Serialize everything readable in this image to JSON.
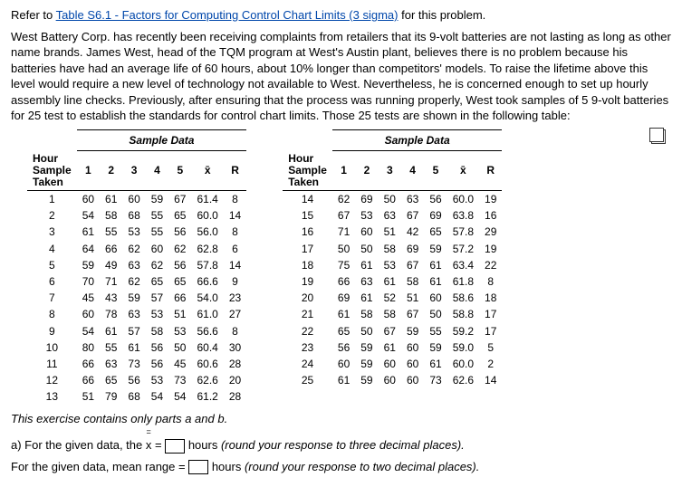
{
  "intro": {
    "refer_prefix": "Refer to ",
    "link_text": "Table S6.1 - Factors for Computing Control Chart Limits (3 sigma)",
    "refer_suffix": " for this problem.",
    "paragraph": "West Battery Corp. has recently been receiving complaints from retailers that its 9-volt batteries are not lasting as long as other name brands. James West, head of the TQM program at West's Austin plant, believes there is no problem because his batteries have had an average life of 60 hours, about 10% longer than competitors' models. To raise the lifetime above this level would require a new level of technology not available to West. Nevertheless, he is concerned enough to set up hourly assembly line checks. Previously, after ensuring that the process was running properly, West took samples of 5 9-volt batteries for 25 test to establish the standards for control chart limits. Those 25 tests are shown in the following table:"
  },
  "table": {
    "group_header": "Sample Data",
    "hour_label_l1": "Hour",
    "hour_label_l2": "Sample",
    "hour_label_l3": "Taken",
    "cols": {
      "c1": "1",
      "c2": "2",
      "c3": "3",
      "c4": "4",
      "c5": "5",
      "xbar": "x̄",
      "r": "R"
    },
    "left_rows": [
      {
        "h": "1",
        "v": [
          "60",
          "61",
          "60",
          "59",
          "67",
          "61.4",
          "8"
        ]
      },
      {
        "h": "2",
        "v": [
          "54",
          "58",
          "68",
          "55",
          "65",
          "60.0",
          "14"
        ]
      },
      {
        "h": "3",
        "v": [
          "61",
          "55",
          "53",
          "55",
          "56",
          "56.0",
          "8"
        ]
      },
      {
        "h": "4",
        "v": [
          "64",
          "66",
          "62",
          "60",
          "62",
          "62.8",
          "6"
        ]
      },
      {
        "h": "5",
        "v": [
          "59",
          "49",
          "63",
          "62",
          "56",
          "57.8",
          "14"
        ]
      },
      {
        "h": "6",
        "v": [
          "70",
          "71",
          "62",
          "65",
          "65",
          "66.6",
          "9"
        ]
      },
      {
        "h": "7",
        "v": [
          "45",
          "43",
          "59",
          "57",
          "66",
          "54.0",
          "23"
        ]
      },
      {
        "h": "8",
        "v": [
          "60",
          "78",
          "63",
          "53",
          "51",
          "61.0",
          "27"
        ]
      },
      {
        "h": "9",
        "v": [
          "54",
          "61",
          "57",
          "58",
          "53",
          "56.6",
          "8"
        ]
      },
      {
        "h": "10",
        "v": [
          "80",
          "55",
          "61",
          "56",
          "50",
          "60.4",
          "30"
        ]
      },
      {
        "h": "11",
        "v": [
          "66",
          "63",
          "73",
          "56",
          "45",
          "60.6",
          "28"
        ]
      },
      {
        "h": "12",
        "v": [
          "66",
          "65",
          "56",
          "53",
          "73",
          "62.6",
          "20"
        ]
      },
      {
        "h": "13",
        "v": [
          "51",
          "79",
          "68",
          "54",
          "54",
          "61.2",
          "28"
        ]
      }
    ],
    "right_rows": [
      {
        "h": "14",
        "v": [
          "62",
          "69",
          "50",
          "63",
          "56",
          "60.0",
          "19"
        ]
      },
      {
        "h": "15",
        "v": [
          "67",
          "53",
          "63",
          "67",
          "69",
          "63.8",
          "16"
        ]
      },
      {
        "h": "16",
        "v": [
          "71",
          "60",
          "51",
          "42",
          "65",
          "57.8",
          "29"
        ]
      },
      {
        "h": "17",
        "v": [
          "50",
          "50",
          "58",
          "69",
          "59",
          "57.2",
          "19"
        ]
      },
      {
        "h": "18",
        "v": [
          "75",
          "61",
          "53",
          "67",
          "61",
          "63.4",
          "22"
        ]
      },
      {
        "h": "19",
        "v": [
          "66",
          "63",
          "61",
          "58",
          "61",
          "61.8",
          "8"
        ]
      },
      {
        "h": "20",
        "v": [
          "69",
          "61",
          "52",
          "51",
          "60",
          "58.6",
          "18"
        ]
      },
      {
        "h": "21",
        "v": [
          "61",
          "58",
          "58",
          "67",
          "50",
          "58.8",
          "17"
        ]
      },
      {
        "h": "22",
        "v": [
          "65",
          "50",
          "67",
          "59",
          "55",
          "59.2",
          "17"
        ]
      },
      {
        "h": "23",
        "v": [
          "56",
          "59",
          "61",
          "60",
          "59",
          "59.0",
          "5"
        ]
      },
      {
        "h": "24",
        "v": [
          "60",
          "59",
          "60",
          "60",
          "61",
          "60.0",
          "2"
        ]
      },
      {
        "h": "25",
        "v": [
          "61",
          "59",
          "60",
          "60",
          "73",
          "62.6",
          "14"
        ]
      }
    ]
  },
  "footer": {
    "note": "This exercise contains only parts a and b.",
    "qa_prefix": "a) For the given data, the ",
    "qa_var": "x",
    "qa_eq": " = ",
    "qa_suffix_plain": " hours ",
    "qa_suffix_italic": "(round your response to three decimal places).",
    "qb_prefix": "For the given data, mean range = ",
    "qb_suffix_plain": " hours ",
    "qb_suffix_italic": "(round your response to two decimal places)."
  }
}
